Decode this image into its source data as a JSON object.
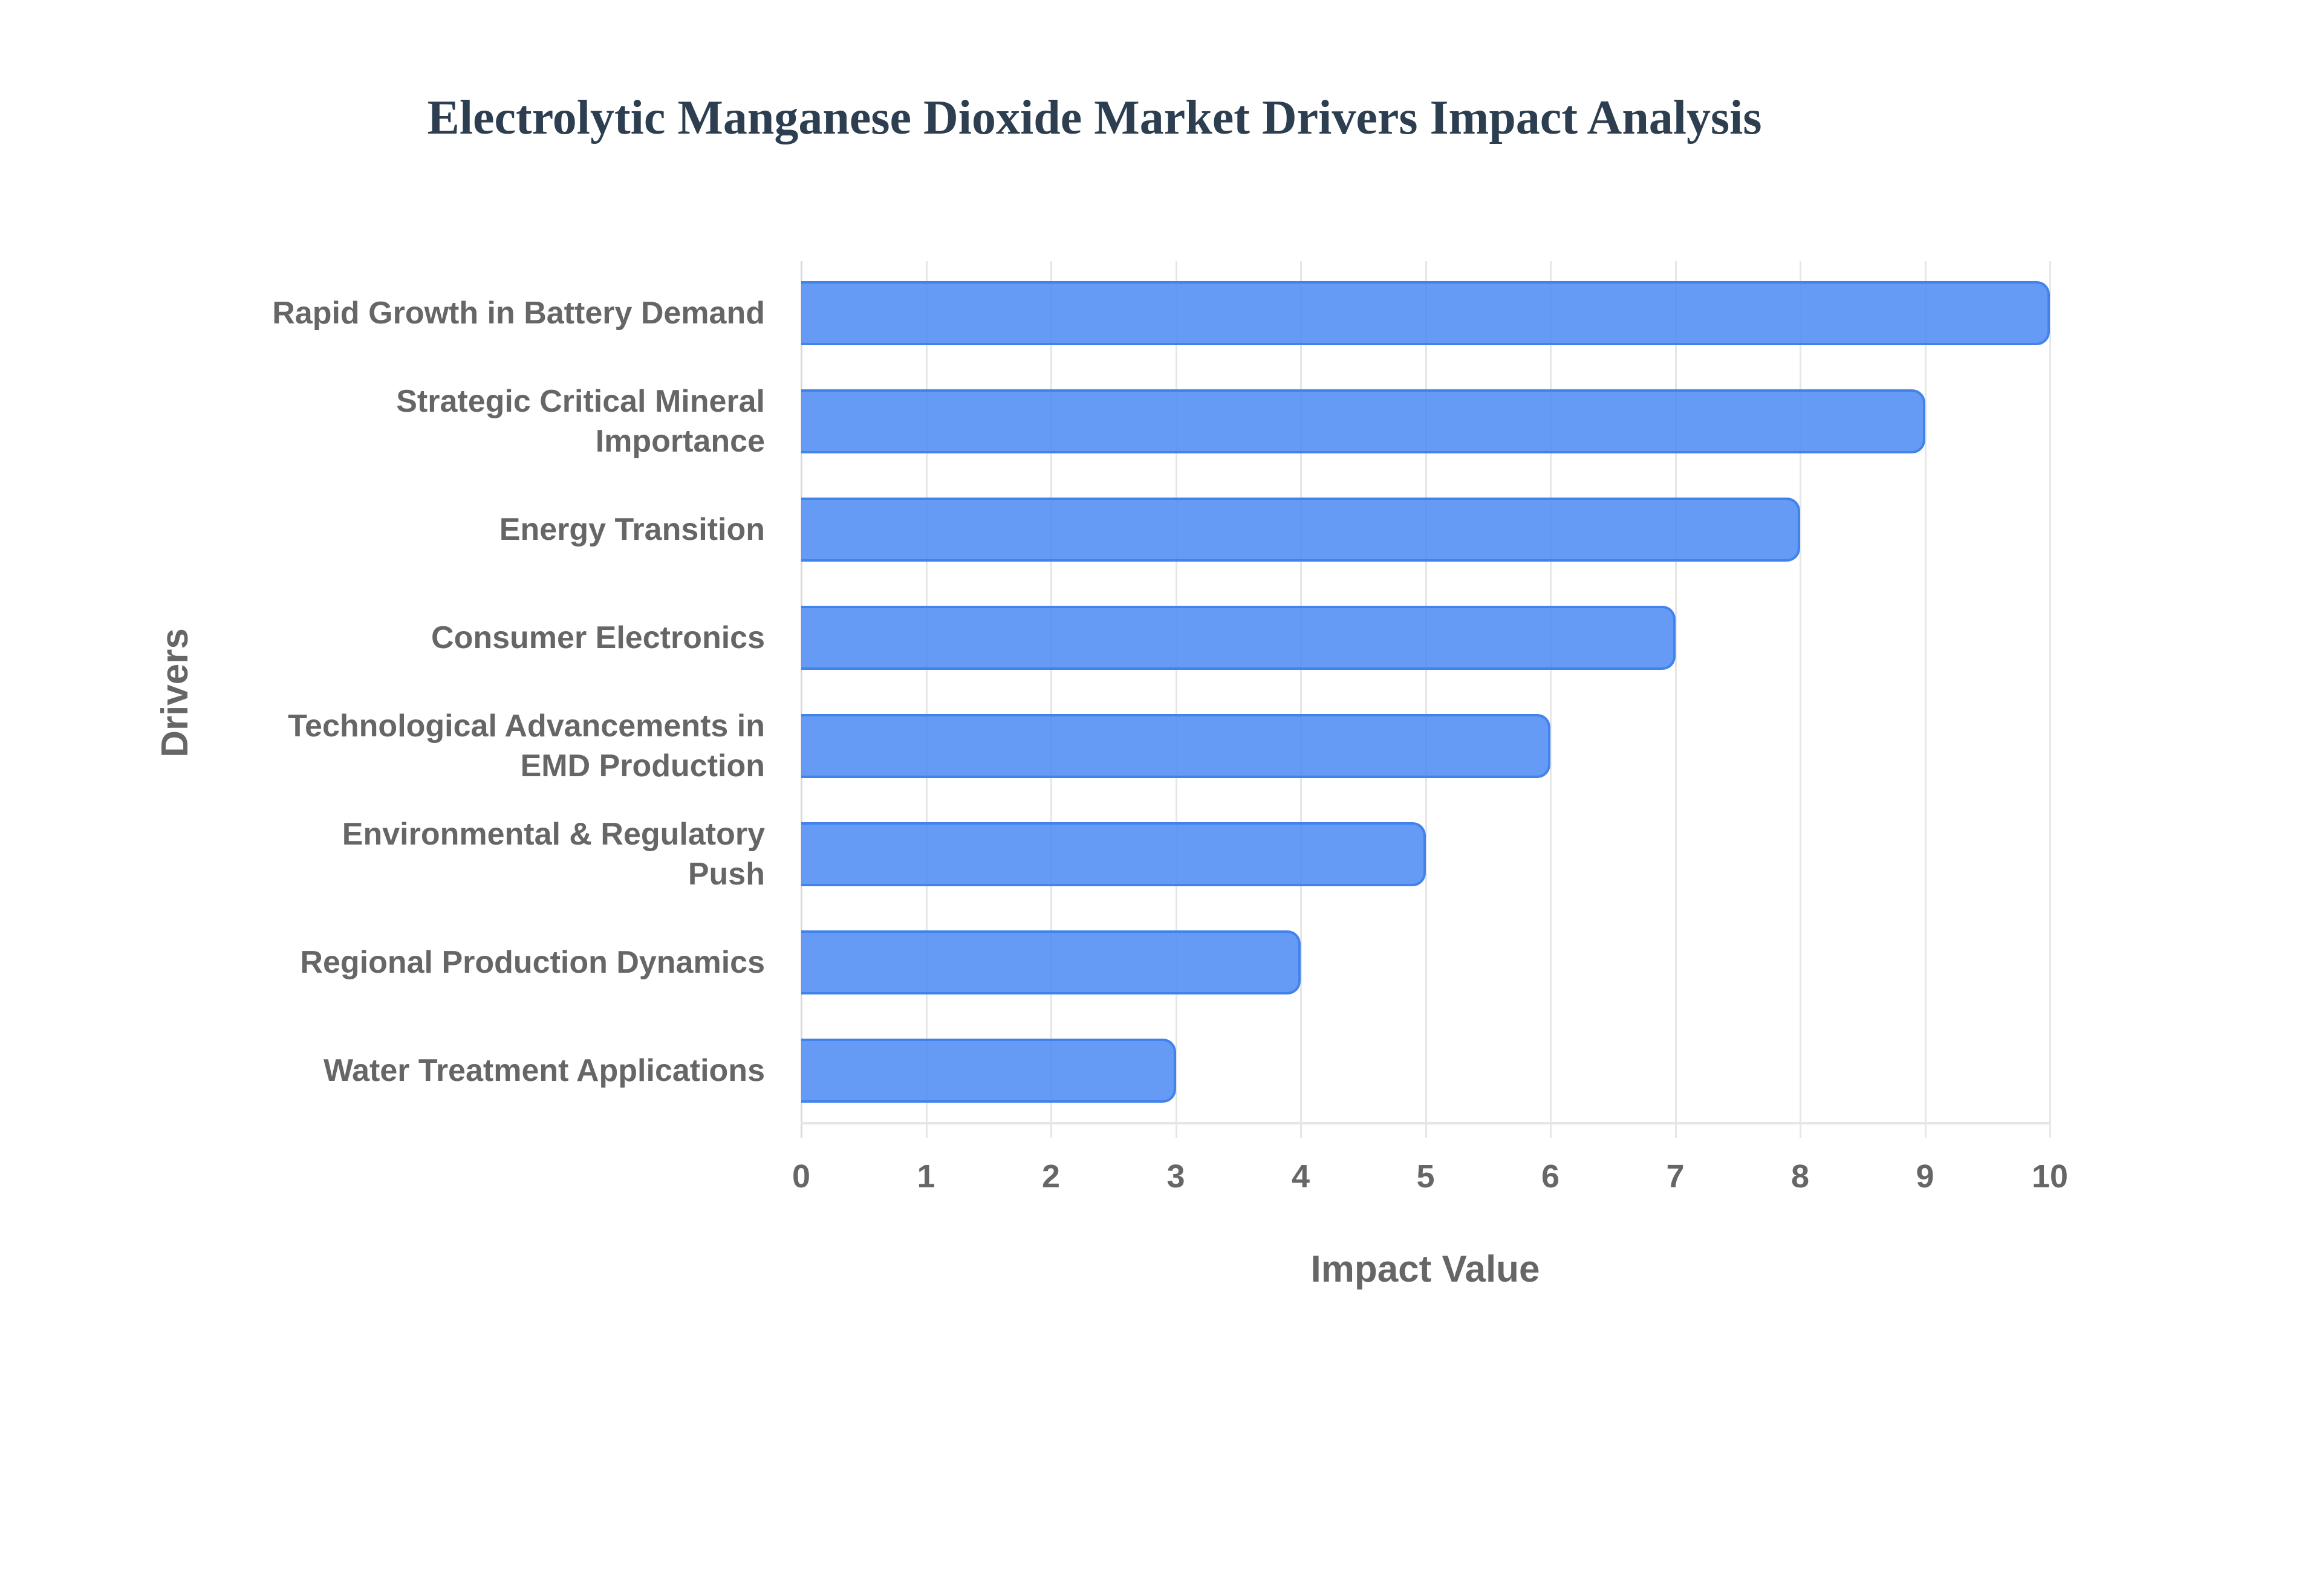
{
  "chart": {
    "title": "Electrolytic Manganese Dioxide Market Drivers Impact Analysis",
    "x_axis_title": "Impact Value",
    "y_axis_title": "Drivers",
    "bar_color": "#6399f5",
    "bar_border_color": "#4182ec",
    "title_color": "#2c3e50",
    "label_color": "#666666",
    "x_ticks": [
      "0",
      "1",
      "2",
      "3",
      "4",
      "5",
      "6",
      "7",
      "8",
      "9",
      "10"
    ],
    "bars": [
      {
        "label": "Rapid Growth in Battery Demand",
        "display_label": "Rapid Growth in Battery Demand",
        "value": 10
      },
      {
        "label": "Strategic Critical Mineral Importance",
        "display_label": "Strategic Critical Mineral\nImportance",
        "value": 9
      },
      {
        "label": "Energy Transition",
        "display_label": "Energy Transition",
        "value": 8
      },
      {
        "label": "Consumer Electronics",
        "display_label": "Consumer Electronics",
        "value": 7
      },
      {
        "label": "Technological Advancements in EMD Production",
        "display_label": "Technological Advancements in\nEMD Production",
        "value": 6
      },
      {
        "label": "Environmental & Regulatory Push",
        "display_label": "Environmental & Regulatory\nPush",
        "value": 5
      },
      {
        "label": "Regional Production Dynamics",
        "display_label": "Regional Production Dynamics",
        "value": 4
      },
      {
        "label": "Water Treatment Applications",
        "display_label": "Water Treatment Applications",
        "value": 3
      }
    ]
  },
  "chart_data": {
    "type": "bar",
    "orientation": "horizontal",
    "title": "Electrolytic Manganese Dioxide Market Drivers Impact Analysis",
    "xlabel": "Impact Value",
    "ylabel": "Drivers",
    "categories": [
      "Rapid Growth in Battery Demand",
      "Strategic Critical Mineral Importance",
      "Energy Transition",
      "Consumer Electronics",
      "Technological Advancements in EMD Production",
      "Environmental & Regulatory Push",
      "Regional Production Dynamics",
      "Water Treatment Applications"
    ],
    "values": [
      10,
      9,
      8,
      7,
      6,
      5,
      4,
      3
    ],
    "xlim": [
      0,
      10
    ],
    "x_ticks": [
      0,
      1,
      2,
      3,
      4,
      5,
      6,
      7,
      8,
      9,
      10
    ],
    "grid": {
      "vertical": true,
      "horizontal": false
    },
    "legend": null
  }
}
